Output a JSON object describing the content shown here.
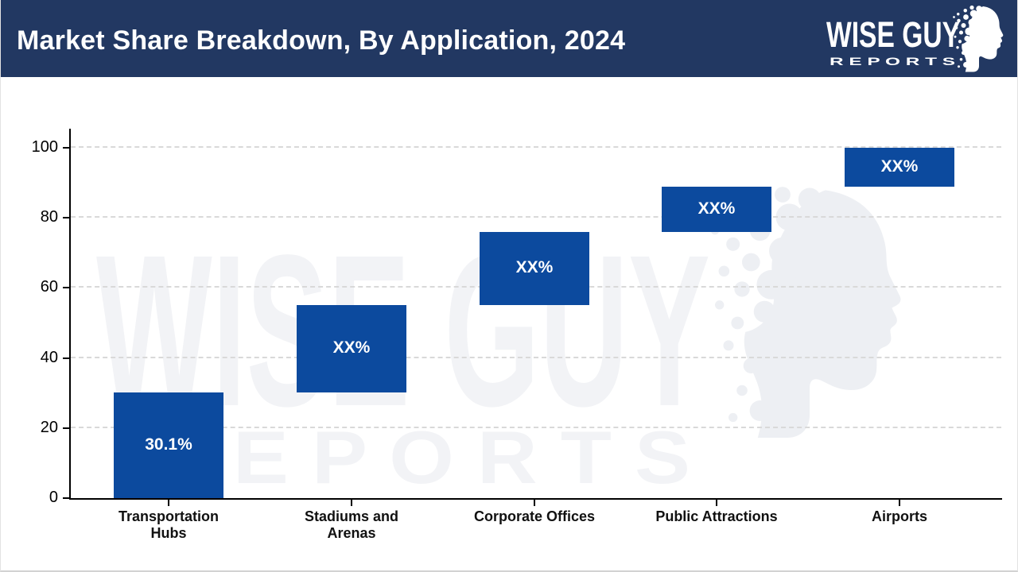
{
  "header": {
    "title": "Market Share Breakdown, By Application, 2024",
    "bg_color": "#223862",
    "logo": {
      "line1": "WISE GUY",
      "line2": "R E P O R T S"
    }
  },
  "watermark": {
    "line1": "WISE GUY",
    "line2": "R E P O R T S"
  },
  "chart_data": {
    "type": "bar",
    "subtype": "waterfall-floating-segments",
    "title": "Market Share Breakdown, By Application, 2024",
    "categories": [
      "Transportation Hubs",
      "Stadiums and Arenas",
      "Corporate Offices",
      "Public Attractions",
      "Airports"
    ],
    "category_tick_lines": [
      [
        "Transportation",
        "Hubs"
      ],
      [
        "Stadiums and",
        "Arenas"
      ],
      [
        "Corporate Offices"
      ],
      [
        "Public Attractions"
      ],
      [
        "Airports"
      ]
    ],
    "segments": [
      {
        "category": "Transportation Hubs",
        "start": 0,
        "end": 30.1,
        "label": "30.1%"
      },
      {
        "category": "Stadiums and Arenas",
        "start": 30.1,
        "end": 55,
        "label": "XX%"
      },
      {
        "category": "Corporate Offices",
        "start": 55,
        "end": 76,
        "label": "XX%"
      },
      {
        "category": "Public Attractions",
        "start": 76,
        "end": 88.8,
        "label": "XX%"
      },
      {
        "category": "Airports",
        "start": 88.8,
        "end": 100,
        "label": "XX%"
      }
    ],
    "values_pct": [
      30.1,
      24.9,
      21,
      12.8,
      11.2
    ],
    "ylim": [
      0,
      100
    ],
    "y_ticks": [
      0,
      20,
      40,
      60,
      80,
      100
    ],
    "y_tick_labels": [
      "0",
      "20",
      "40",
      "60",
      "80",
      "100"
    ],
    "grid": true,
    "gridline_style": "dashed",
    "legend": "none",
    "bar_color": "#0c4a9e",
    "bar_label_color": "#ffffff",
    "axis_color": "#000000"
  }
}
